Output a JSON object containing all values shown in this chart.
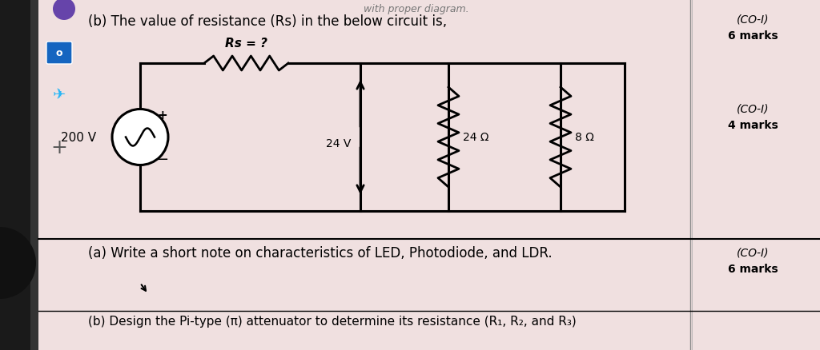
{
  "bg_color": "#f0e0e0",
  "sidebar_bg": "#1a1a1a",
  "sidebar_right_bg": "#e8d8d8",
  "main_text_color": "#000000",
  "title_b": "(b) The value of resistance (Rs) in the below circuit is,",
  "co1_top": "(CO-I)",
  "marks_top": "6 marks",
  "co1_mid": "(CO-I)",
  "marks_mid": "4 marks",
  "co1_bot": "(CO-I)",
  "marks_bot": "6 marks",
  "bottom_text_a": "(a) Write a short note on characteristics of LED, Photodiode, and LDR.",
  "bottom_text_b": "(b) Design the Pi-type (π) attenuator to determine its resistance (R₁, R₂, and R₃)",
  "top_gray_text": "with proper diagram.",
  "source_label": "200 V",
  "rs_label": "Rs = ?",
  "v24_label": "24 V",
  "r24_label": "24 Ω",
  "r8_label": "8 Ω",
  "figw": 10.24,
  "figh": 4.39,
  "dpi": 100
}
